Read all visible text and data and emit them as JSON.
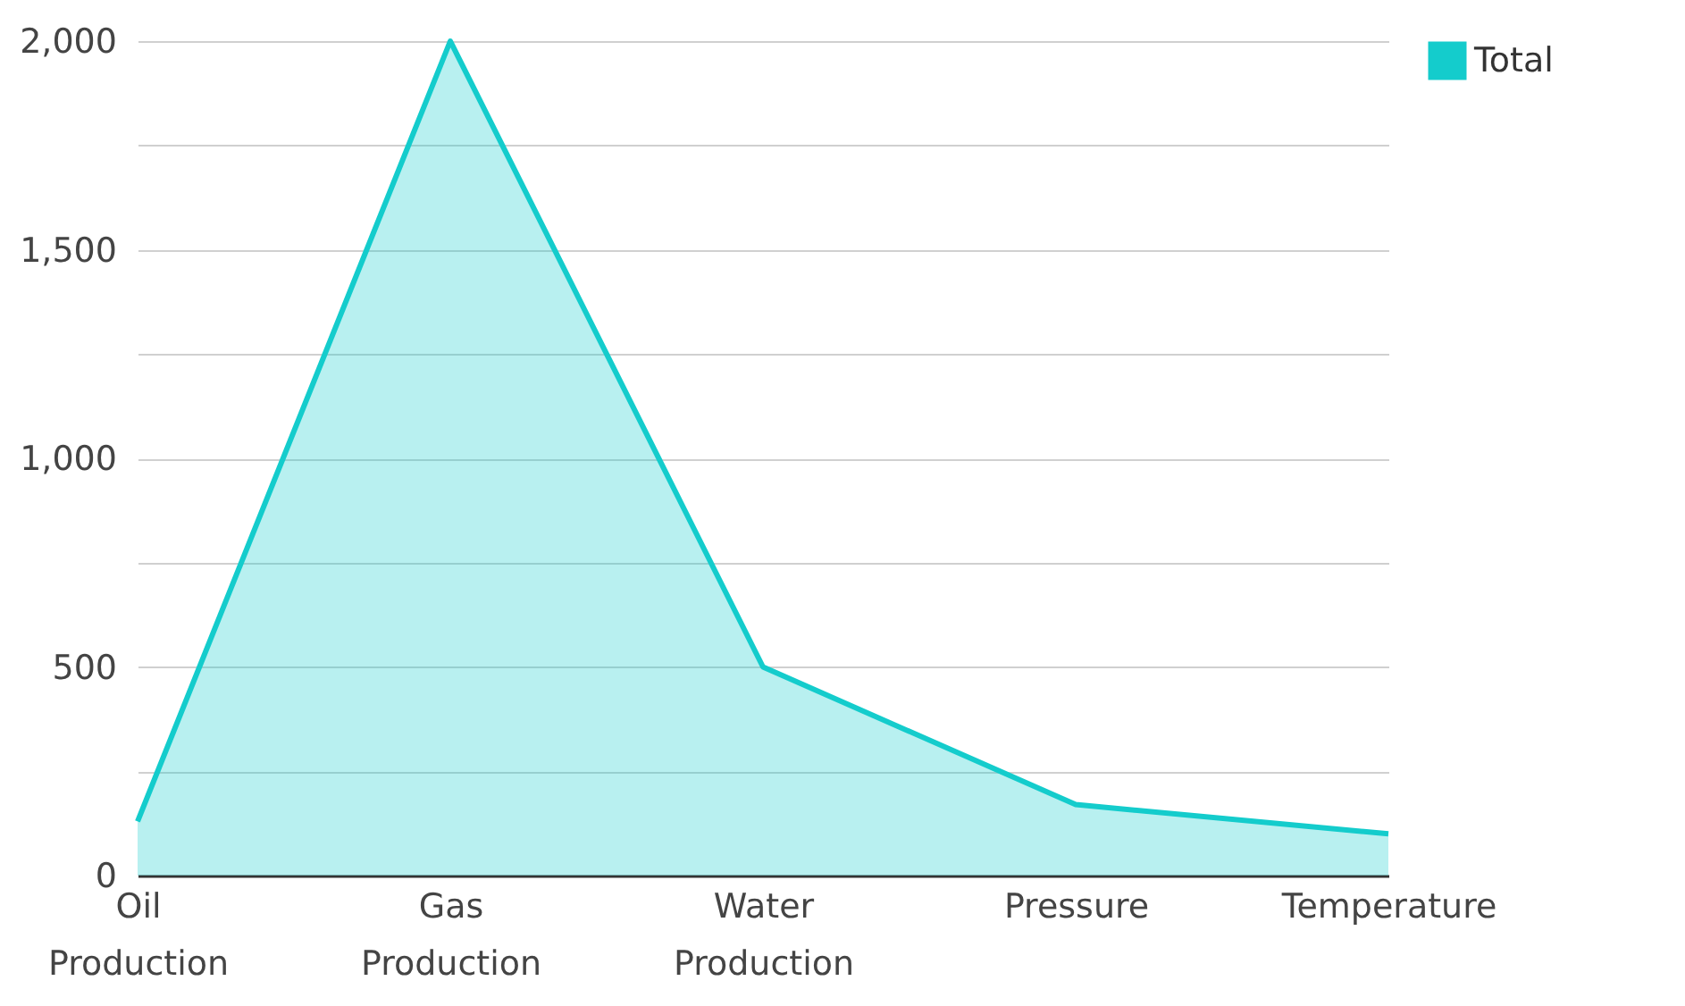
{
  "chart_data": {
    "type": "area",
    "categories": [
      "Oil Production",
      "Gas Production",
      "Water Production",
      "Pressure",
      "Temperature"
    ],
    "series": [
      {
        "name": "Total",
        "color": "#14cccc",
        "values": [
          130,
          2000,
          500,
          170,
          100
        ]
      }
    ],
    "ylim": [
      0,
      2000
    ],
    "yticks": [
      0,
      {
        "value": 250,
        "label": null
      },
      500,
      {
        "value": 750,
        "label": null
      },
      {
        "value": 1000,
        "label": "1,000"
      },
      {
        "value": 1250,
        "label": null
      },
      {
        "value": 1500,
        "label": "1,500"
      },
      {
        "value": 1750,
        "label": null
      },
      {
        "value": 2000,
        "label": "2,000"
      }
    ],
    "grid": "y",
    "legend": "top right"
  }
}
